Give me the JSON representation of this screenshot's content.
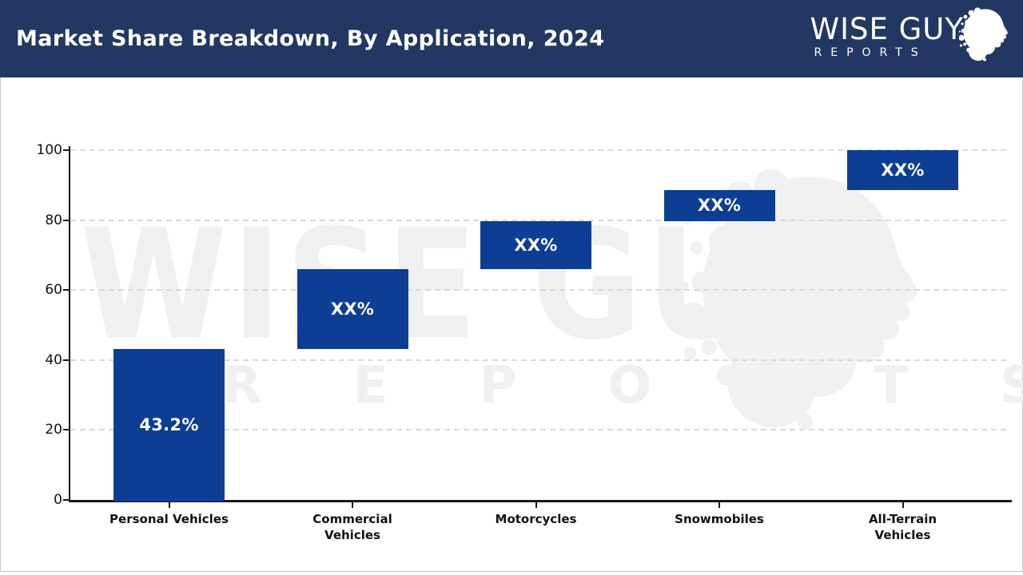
{
  "header": {
    "title": "Market Share Breakdown, By Application, 2024",
    "logo": {
      "name": "WISE GUY",
      "subname": "REPORTS"
    }
  },
  "watermark": {
    "line1": "WISE GUY",
    "line2": "R E P O R T S"
  },
  "chart_data": {
    "type": "bar",
    "variant": "floating-waterfall",
    "title": "Market Share Breakdown, By Application, 2024",
    "unit": "%",
    "categories": [
      "Personal Vehicles",
      "Commercial\nVehicles",
      "Motorcycles",
      "Snowmobiles",
      "All-Terrain\nVehicles"
    ],
    "segments": [
      {
        "category": "Personal Vehicles",
        "start": 0,
        "end": 43.2,
        "label": "43.2%"
      },
      {
        "category": "Commercial Vehicles",
        "start": 43.2,
        "end": 66.0,
        "label": "XX%"
      },
      {
        "category": "Motorcycles",
        "start": 66.0,
        "end": 79.7,
        "label": "XX%"
      },
      {
        "category": "Snowmobiles",
        "start": 79.7,
        "end": 88.6,
        "label": "XX%"
      },
      {
        "category": "All-Terrain Vehicles",
        "start": 88.6,
        "end": 100.0,
        "label": "XX%"
      }
    ],
    "y_axis": {
      "ticks": [
        0,
        20,
        40,
        60,
        80,
        100
      ],
      "range": [
        0,
        101
      ]
    },
    "grid": "horizontal-dashed",
    "legend": null,
    "colors": {
      "bar": "#0d3e94",
      "grid": "#d9d9d9",
      "axis": "#1a1a1a",
      "bar_label_text": "#ffffff",
      "header_bg": "#223862"
    }
  }
}
